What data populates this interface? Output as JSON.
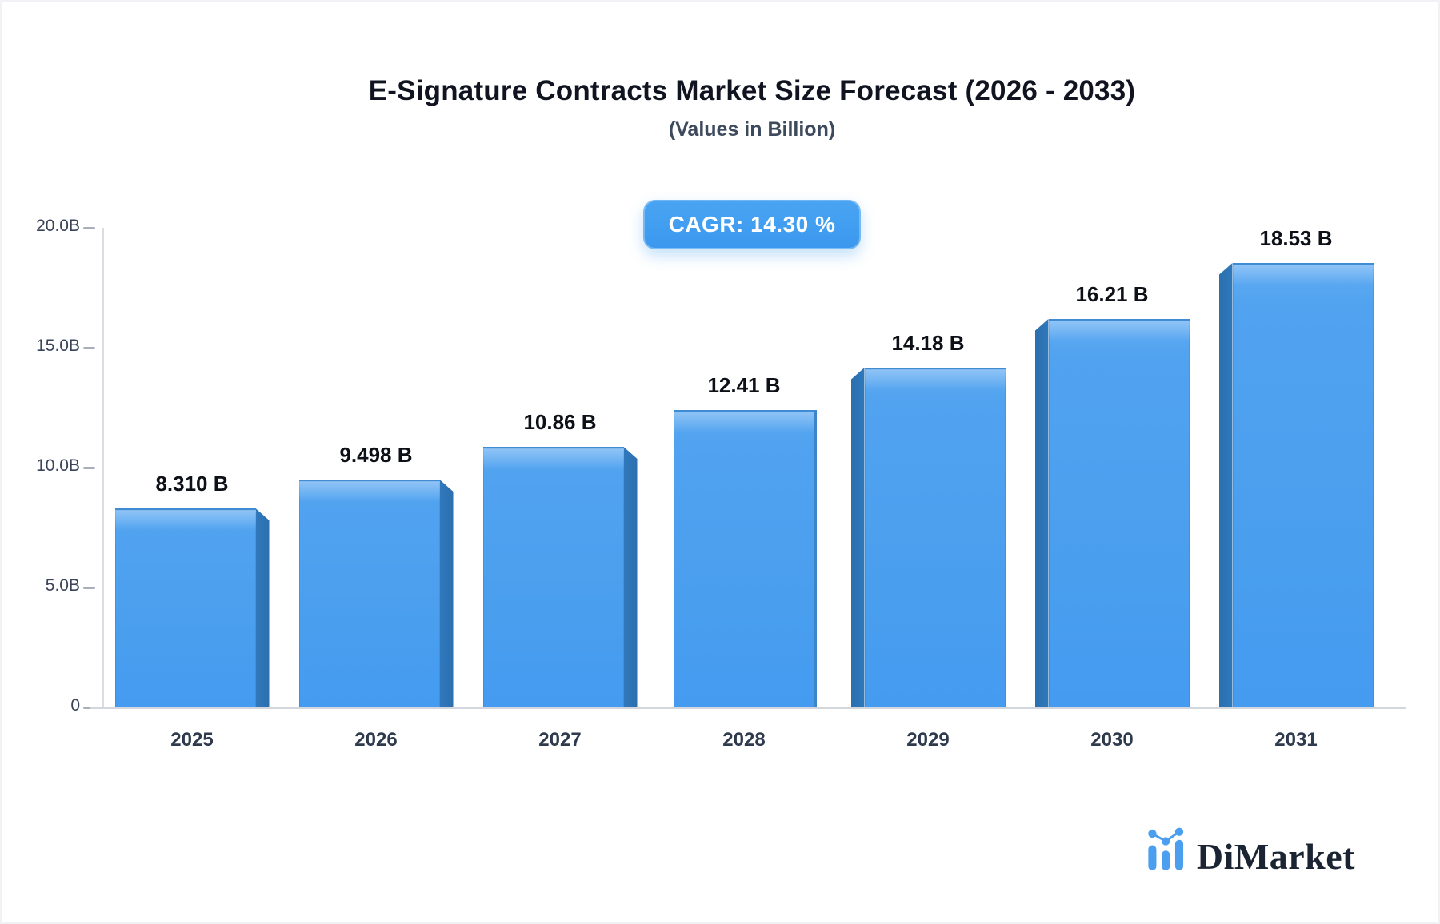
{
  "header": {
    "title": "E-Signature Contracts Market Size Forecast (2026 - 2033)",
    "subtitle": "(Values in Billion)",
    "cagr_badge": "CAGR: 14.30 %"
  },
  "chart_data": {
    "type": "bar",
    "title": "E-Signature Contracts Market Size Forecast (2026 - 2033)",
    "subtitle": "(Values in Billion)",
    "categories": [
      "2025",
      "2026",
      "2027",
      "2028",
      "2029",
      "2030",
      "2031"
    ],
    "values": [
      8.31,
      9.498,
      10.86,
      12.41,
      14.18,
      16.21,
      18.53
    ],
    "value_labels": [
      "8.310 B",
      "9.498 B",
      "10.86 B",
      "12.41 B",
      "14.18 B",
      "16.21 B",
      "18.53 B"
    ],
    "unit": "Billion",
    "cagr": "14.30 %",
    "ylim": [
      0,
      20
    ],
    "yticks": [
      {
        "label": "20.0B",
        "value": 20
      },
      {
        "label": "15.0B",
        "value": 15
      },
      {
        "label": "10.0B",
        "value": 10
      },
      {
        "label": "5.0B",
        "value": 5
      },
      {
        "label": "0",
        "value": 0
      }
    ],
    "grid": false,
    "legend": null,
    "bar_color": "#4A9FEE",
    "bar_side_color": "#2E74B8",
    "bar_3d_perspective": "center"
  },
  "brand": {
    "name": "DiMarket",
    "icon": "bar-chart-logo-icon",
    "icon_color": "#4B9FEE",
    "text_color": "#1B2433"
  }
}
